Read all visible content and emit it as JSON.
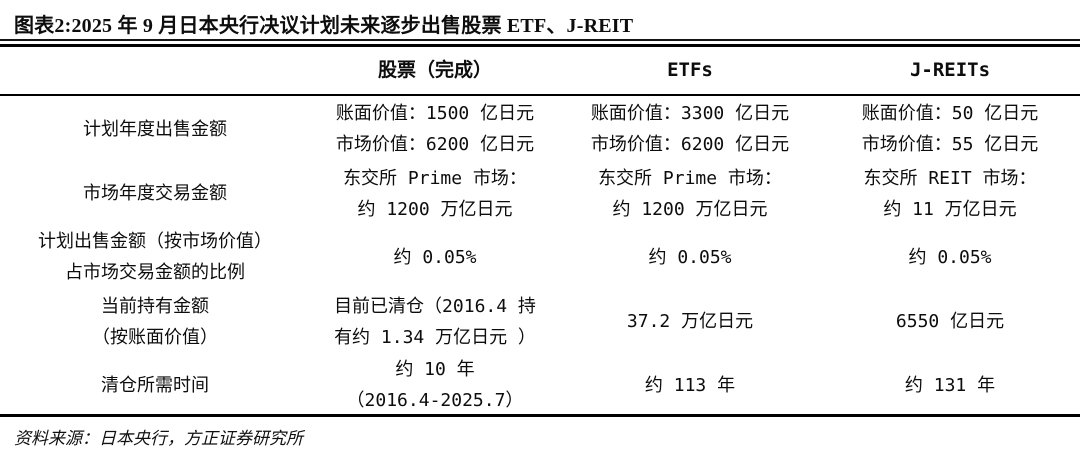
{
  "title": "图表2:2025 年 9 月日本央行决议计划未来逐步出售股票 ETF、J-REIT",
  "colors": {
    "text": "#0d0d0d",
    "border": "#000000",
    "background": "#ffffff"
  },
  "table": {
    "header": [
      "",
      "股票（完成）",
      "ETFs",
      "J-REITs"
    ],
    "rows": [
      {
        "cells": [
          [
            "计划年度出售金额"
          ],
          [
            "账面价值：1500 亿日元",
            "市场价值：6200 亿日元"
          ],
          [
            "账面价值：3300 亿日元",
            "市场价值：6200 亿日元"
          ],
          [
            "账面价值：50 亿日元",
            "市场价值：55 亿日元"
          ]
        ]
      },
      {
        "cells": [
          [
            "市场年度交易金额"
          ],
          [
            "东交所 Prime 市场：",
            "约 1200 万亿日元"
          ],
          [
            "东交所 Prime 市场：",
            "约 1200 万亿日元"
          ],
          [
            "东交所 REIT 市场：",
            "约 11 万亿日元"
          ]
        ]
      },
      {
        "cells": [
          [
            "计划出售金额（按市场价值）",
            "占市场交易金额的比例"
          ],
          [
            "约 0.05%"
          ],
          [
            "约 0.05%"
          ],
          [
            "约 0.05%"
          ]
        ]
      },
      {
        "cells": [
          [
            "当前持有金额",
            "（按账面价值）"
          ],
          [
            "目前已清仓（2016.4 持",
            "有约 1.34 万亿日元 ）"
          ],
          [
            "37.2 万亿日元"
          ],
          [
            "6550 亿日元"
          ]
        ]
      },
      {
        "cells": [
          [
            "清仓所需时间"
          ],
          [
            "约 10 年",
            "（2016.4-2025.7）"
          ],
          [
            "约 113 年"
          ],
          [
            "约 131 年"
          ]
        ]
      }
    ]
  },
  "source": "资料来源：日本央行，方正证券研究所"
}
